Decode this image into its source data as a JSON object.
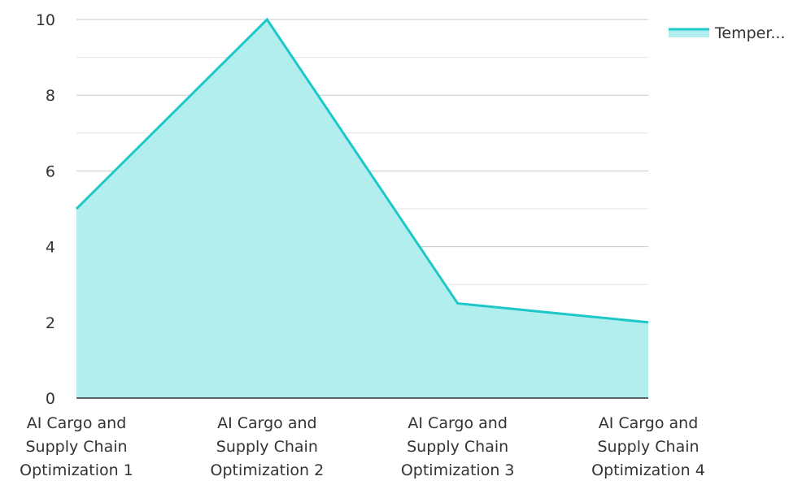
{
  "chart_data": {
    "type": "area",
    "categories": [
      [
        "AI Cargo and",
        "Supply Chain",
        "Optimization 1"
      ],
      [
        "AI Cargo and",
        "Supply Chain",
        "Optimization 2"
      ],
      [
        "AI Cargo and",
        "Supply Chain",
        "Optimization 3"
      ],
      [
        "AI Cargo and",
        "Supply Chain",
        "Optimization 4"
      ]
    ],
    "series": [
      {
        "name": "Temper...",
        "values": [
          5,
          10,
          2.5,
          2
        ]
      }
    ],
    "ylim": [
      0,
      10
    ],
    "yticks": [
      0,
      2,
      4,
      6,
      8,
      10
    ],
    "grid": true,
    "legend_position": "top-right",
    "colors": {
      "line": "#1ec8c8",
      "fill": "#b2eeee",
      "grid_major": "#c8c8c8",
      "grid_minor": "#e3e3e3",
      "axis": "#333333"
    }
  }
}
